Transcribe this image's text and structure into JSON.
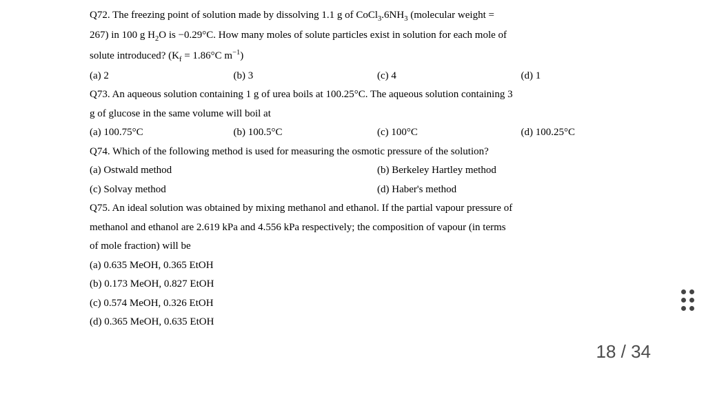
{
  "q72": {
    "prefix": "Q72. ",
    "text_line1": "The freezing point of solution made by dissolving 1.1 g of CoCl₃.6NH₃ (molecular weight =",
    "text_line2": "267) in 100 g H₂O is −0.29°C. How many moles of solute particles exist in solution for each mole of",
    "text_line3": "solute introduced? (K",
    "text_line3_sub": "f",
    "text_line3_end": " = 1.86°C m⁻¹)",
    "options": {
      "a": "(a) 2",
      "b": "(b) 3",
      "c": "(c) 4",
      "d": "(d) 1"
    }
  },
  "q73": {
    "prefix": "Q73. ",
    "text_line1": "An aqueous solution containing 1 g of urea boils at 100.25°C. The aqueous solution containing 3",
    "text_line2": "g of glucose in the same volume will boil at",
    "options": {
      "a": "(a) 100.75°C",
      "b": "(b) 100.5°C",
      "c": "(c) 100°C",
      "d": "(d) 100.25°C"
    }
  },
  "q74": {
    "prefix": "Q74. ",
    "text_line1": "Which of the following method is used for measuring the osmotic pressure of the solution?",
    "options": {
      "a": "(a) Ostwald method",
      "b": "(b) Berkeley Hartley method",
      "c": "(c) Solvay method",
      "d": "(d) Haber's method"
    }
  },
  "q75": {
    "prefix": "Q75. ",
    "text_line1": "An ideal solution was obtained by mixing methanol and ethanol. If the partial vapour pressure of",
    "text_line2": "methanol and ethanol are 2.619 kPa and 4.556 kPa respectively; the composition of vapour (in terms",
    "text_line3": "of mole fraction) will be",
    "options": {
      "a": "(a) 0.635 MeOH, 0.365 EtOH",
      "b": "(b) 0.173 MeOH, 0.827 EtOH",
      "c": "(c) 0.574 MeOH, 0.326 EtOH",
      "d": "(d) 0.365 MeOH, 0.635 EtOH"
    }
  },
  "page_number": "18 / 34"
}
